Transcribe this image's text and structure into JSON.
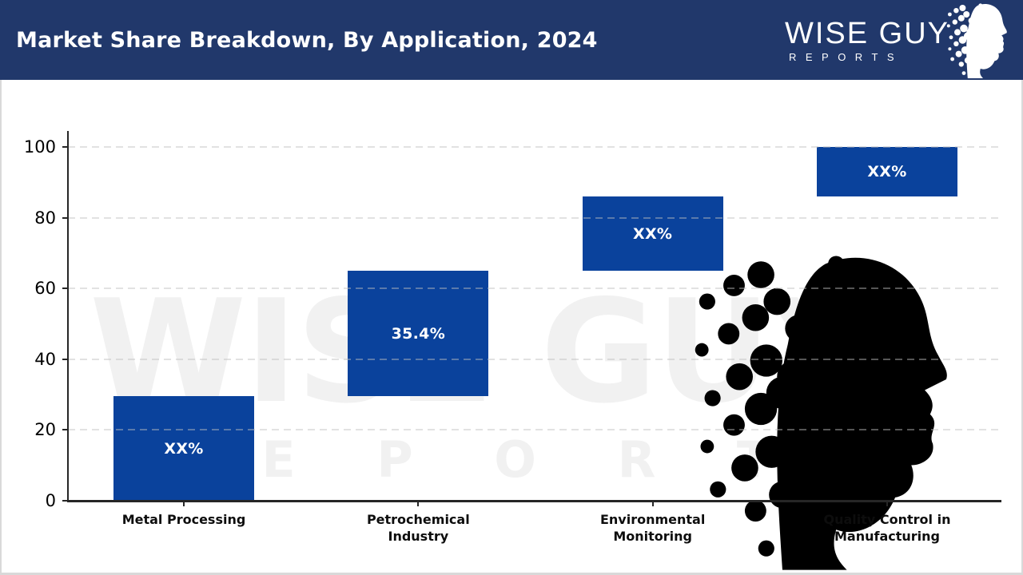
{
  "header": {
    "title": "Market Share Breakdown, By Application, 2024",
    "logo": {
      "line1": "WISE GUY",
      "line2": "REPORTS"
    }
  },
  "watermark": {
    "line1": "WISE GUY",
    "line2": "R E P O R T S"
  },
  "colors": {
    "header_bg": "#21386b",
    "bar": "#0a429c",
    "bar_label": "#ffffff",
    "axis": "#262626",
    "grid_dash": "#e3e3e3",
    "watermark": "#f1f1f1"
  },
  "chart_data": {
    "type": "bar",
    "subtype": "floating-stacked-range (waterfall of market shares)",
    "title": "Market Share Breakdown, By Application, 2024",
    "xlabel": "",
    "ylabel": "",
    "ylim": [
      0,
      105
    ],
    "yticks": [
      0,
      20,
      40,
      60,
      80,
      100
    ],
    "grid": "horizontal dashed",
    "legend": "none",
    "categories": [
      "Metal Processing",
      "Petrochemical Industry",
      "Environmental Monitoring",
      "Quality Control in Manufacturing"
    ],
    "segments": [
      {
        "category": "Metal Processing",
        "start": 0,
        "end": 29.5,
        "label": "XX%"
      },
      {
        "category": "Petrochemical Industry",
        "start": 29.5,
        "end": 64.9,
        "label": "35.4%"
      },
      {
        "category": "Environmental Monitoring",
        "start": 64.9,
        "end": 86.0,
        "label": "XX%"
      },
      {
        "category": "Quality Control in Manufacturing",
        "start": 86.0,
        "end": 100,
        "label": "XX%"
      }
    ]
  }
}
